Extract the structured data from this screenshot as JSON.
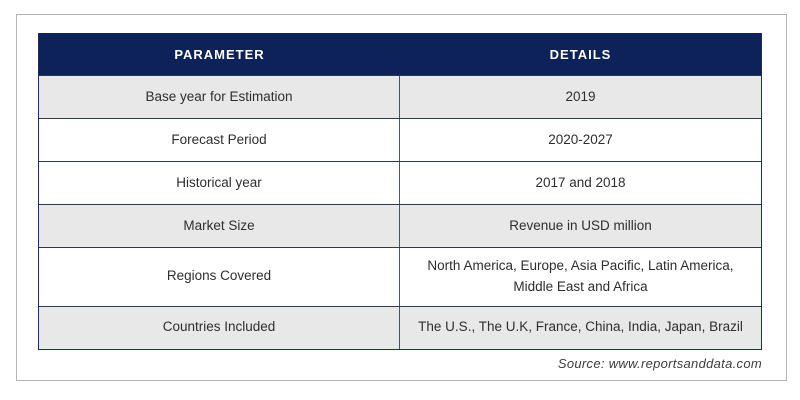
{
  "table": {
    "headers": {
      "parameter": "PARAMETER",
      "details": "DETAILS"
    },
    "rows": [
      {
        "parameter": "Base year for Estimation",
        "details": "2019",
        "shaded": true
      },
      {
        "parameter": "Forecast Period",
        "details": "2020-2027",
        "shaded": false
      },
      {
        "parameter": "Historical year",
        "details": "2017 and 2018",
        "shaded": false
      },
      {
        "parameter": "Market Size",
        "details": "Revenue in USD million",
        "shaded": true
      },
      {
        "parameter": "Regions Covered",
        "details": "North America, Europe, Asia Pacific, Latin America,\nMiddle East and Africa",
        "shaded": false
      },
      {
        "parameter": "Countries Included",
        "details": "The U.S., The  U.K, France, China, India, Japan, Brazil",
        "shaded": true
      }
    ]
  },
  "source": "Source: www.reportsanddata.com",
  "colors": {
    "header_bg": "#0d2259",
    "header_text": "#ffffff",
    "row_shade": "#e8e8e8",
    "row_white": "#ffffff",
    "row_border": "#2e3851",
    "column_divider": "#3e4f94",
    "table_border": "#1e2d60",
    "card_border": "#b4b4b4",
    "body_text": "#2e2e2e",
    "source_text": "#3d3d3d"
  }
}
